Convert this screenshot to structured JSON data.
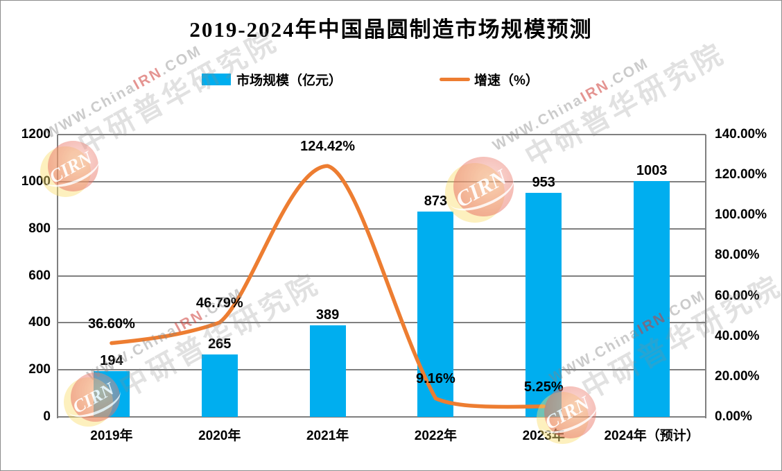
{
  "title": "2019-2024年中国晶圆制造市场规模预测",
  "legend": {
    "bar_label": "市场规模（亿元）",
    "line_label": "增速（%）"
  },
  "colors": {
    "bar": "#00AEEF",
    "line": "#ED7D31",
    "grid": "#7F7F7F",
    "text": "#000000"
  },
  "watermark": {
    "url_prefix": "WWW.China",
    "url_highlight": "IRN",
    "url_suffix": ".COM",
    "cn_text": "中研普华研究院",
    "logo_text": "CIRN"
  },
  "chart_data": {
    "type": "bar",
    "combo": "bar+line",
    "title": "2019-2024年中国晶圆制造市场规模预测",
    "categories": [
      "2019年",
      "2020年",
      "2021年",
      "2022年",
      "2023年",
      "2024年（预计）"
    ],
    "series": [
      {
        "name": "市场规模（亿元）",
        "chart_type": "bar",
        "axis": "left",
        "color": "#00AEEF",
        "values": [
          194,
          265,
          389,
          873,
          953,
          1003
        ],
        "data_labels": [
          "194",
          "265",
          "389",
          "873",
          "953",
          "1003"
        ]
      },
      {
        "name": "增速（%）",
        "chart_type": "line",
        "axis": "right",
        "color": "#ED7D31",
        "values": [
          36.6,
          46.79,
          124.42,
          9.16,
          5.25
        ],
        "data_labels": [
          "36.60%",
          "46.79%",
          "124.42%",
          "9.16%",
          "5.25%"
        ]
      }
    ],
    "left_axis": {
      "label": "",
      "min": 0,
      "max": 1200,
      "step": 200,
      "tick_labels": [
        "0",
        "200",
        "400",
        "600",
        "800",
        "1000",
        "1200"
      ]
    },
    "right_axis": {
      "label": "",
      "min": 0,
      "max": 140,
      "step": 20,
      "tick_labels": [
        "0.00%",
        "20.00%",
        "40.00%",
        "60.00%",
        "80.00%",
        "100.00%",
        "120.00%",
        "140.00%"
      ]
    },
    "grid": true,
    "legend_position": "top"
  }
}
